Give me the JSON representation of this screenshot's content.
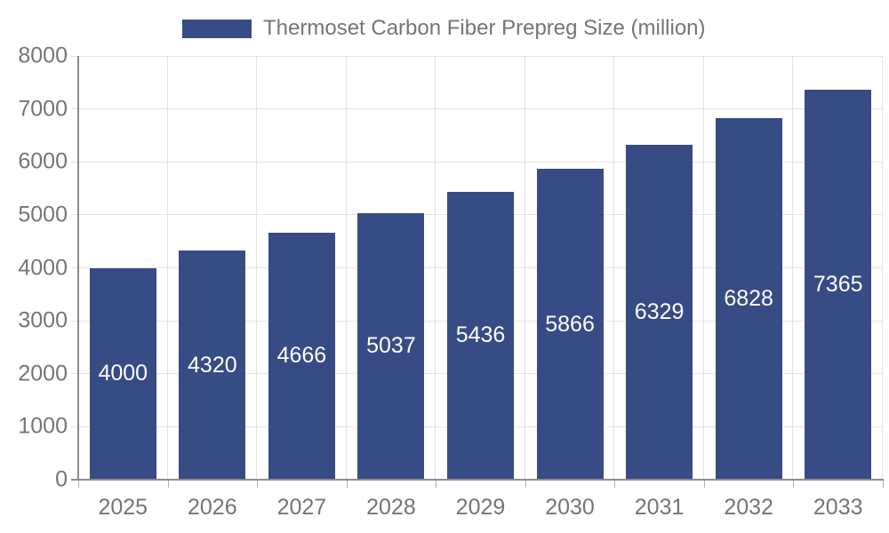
{
  "legend": {
    "label": "Thermoset Carbon Fiber Prepreg Size (million)",
    "swatch_color": "#374B85"
  },
  "chart_data": {
    "type": "bar",
    "title": "Thermoset Carbon Fiber Prepreg Size (million)",
    "categories": [
      "2025",
      "2026",
      "2027",
      "2028",
      "2029",
      "2030",
      "2031",
      "2032",
      "2033"
    ],
    "values": [
      4000,
      4320,
      4666,
      5037,
      5436,
      5866,
      6329,
      6828,
      7365
    ],
    "series": [
      {
        "name": "Thermoset Carbon Fiber Prepreg Size (million)",
        "values": [
          4000,
          4320,
          4666,
          5037,
          5436,
          5866,
          6329,
          6828,
          7365
        ]
      }
    ],
    "xlabel": "",
    "ylabel": "",
    "ylim": [
      0,
      8000
    ],
    "y_ticks": [
      0,
      1000,
      2000,
      3000,
      4000,
      5000,
      6000,
      7000,
      8000
    ],
    "grid": true,
    "legend_position": "top",
    "value_labels_inside_bars": true,
    "bar_color": "#374B85",
    "value_label_color": "#ffffff",
    "axis_color": "#8c8c8c",
    "gridline_color": "#e3e3e3",
    "tick_color": "#b0b0b0",
    "text_color": "#757575"
  }
}
